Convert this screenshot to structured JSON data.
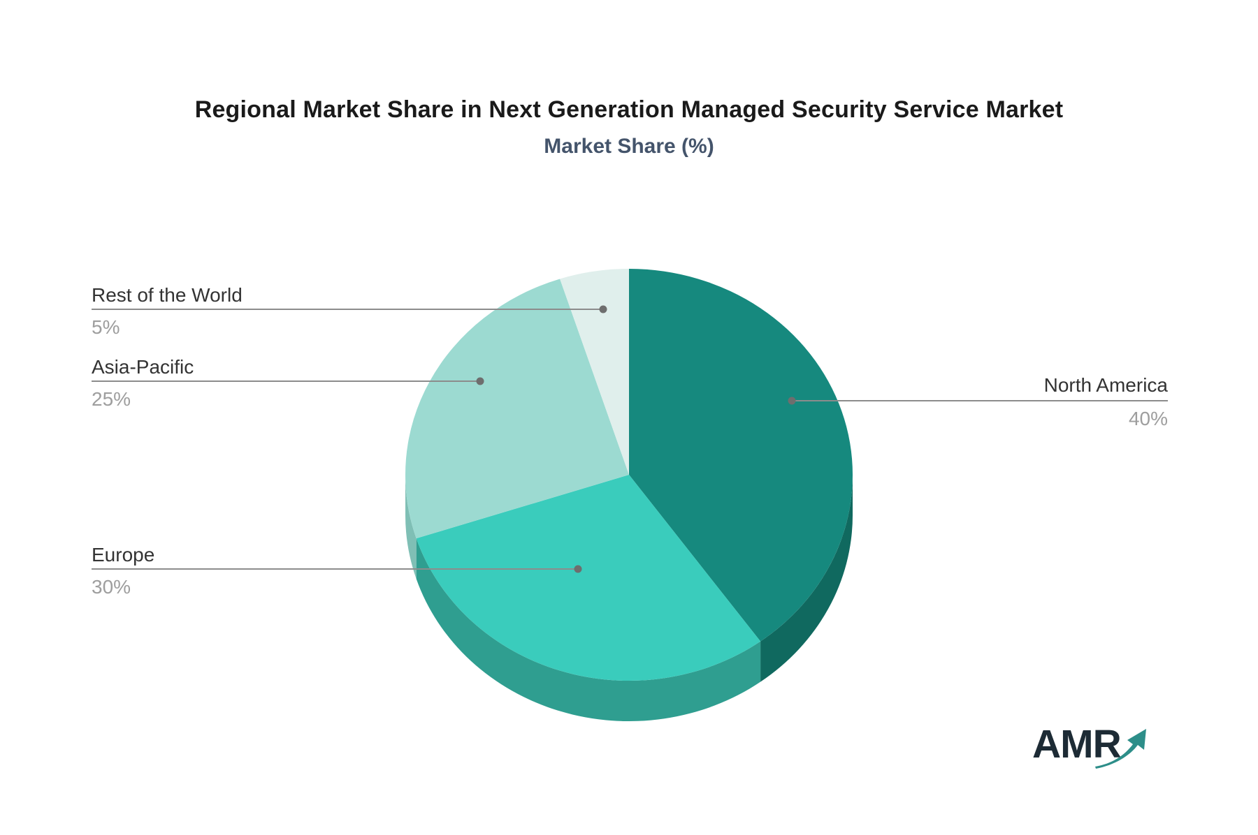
{
  "title": "Regional Market Share in Next Generation Managed Security Service Market",
  "subtitle": "Market Share (%)",
  "logo": {
    "text": "AMR"
  },
  "colors": {
    "leader_line": "#8c8c8c",
    "leader_dot": "#6e6e6e",
    "label_text": "#333333",
    "percent_text": "#9e9e9e",
    "title_text": "#1a1a1a",
    "subtitle_text": "#44546b",
    "logo_text": "#1d2b35",
    "logo_arrow": "#2d8e89",
    "background": "#ffffff"
  },
  "chart_data": {
    "type": "pie",
    "title": "Regional Market Share in Next Generation Managed Security Service Market",
    "subtitle": "Market Share (%)",
    "unit": "%",
    "effect": "3d",
    "legend": "none",
    "start_angle_deg": 0,
    "direction": "clockwise",
    "slices": [
      {
        "label": "North America",
        "value": 40,
        "display": "40%",
        "color": "#16897e",
        "side_color": "#10695f"
      },
      {
        "label": "Europe",
        "value": 30,
        "display": "30%",
        "color": "#3accbc",
        "side_color": "#2f9e90"
      },
      {
        "label": "Asia-Pacific",
        "value": 25,
        "display": "25%",
        "color": "#9cdad1",
        "side_color": "#7fbfb5"
      },
      {
        "label": "Rest of the World",
        "value": 5,
        "display": "5%",
        "color": "#e0efec",
        "side_color": "#c4ddd8"
      }
    ]
  }
}
